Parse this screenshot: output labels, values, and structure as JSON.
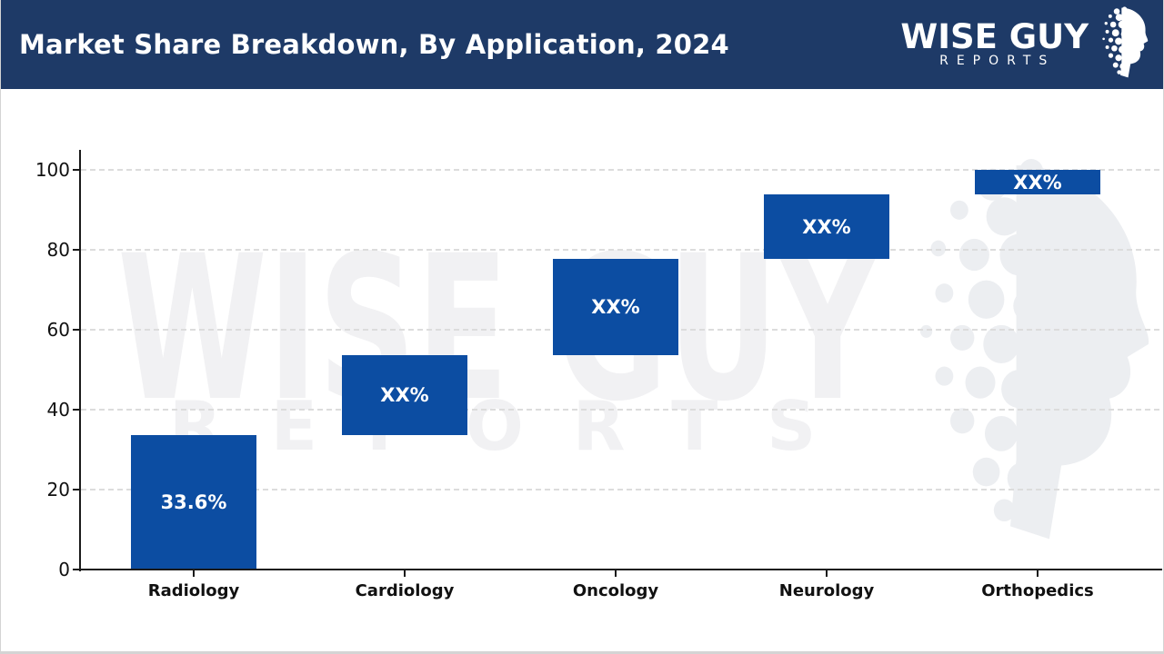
{
  "header": {
    "title": "Market Share Breakdown, By Application, 2024",
    "bg_color": "#1e3a67",
    "logo": {
      "primary": "WISE GUY",
      "secondary": "REPORTS"
    }
  },
  "watermark": {
    "primary": "WISE GUY",
    "secondary": "REPORTS"
  },
  "chart_data": {
    "type": "bar",
    "variant": "waterfall-breakdown",
    "title": "Market Share Breakdown, By Application, 2024",
    "categories": [
      "Radiology",
      "Cardiology",
      "Oncology",
      "Neurology",
      "Orthopedics"
    ],
    "segments": [
      {
        "category": "Radiology",
        "start": 0,
        "end": 33.6,
        "label": "33.6%"
      },
      {
        "category": "Cardiology",
        "start": 33.6,
        "end": 53.6,
        "label": "XX%"
      },
      {
        "category": "Oncology",
        "start": 53.6,
        "end": 77.7,
        "label": "XX%"
      },
      {
        "category": "Neurology",
        "start": 77.7,
        "end": 93.8,
        "label": "XX%"
      },
      {
        "category": "Orthopedics",
        "start": 93.8,
        "end": 100,
        "label": "XX%"
      }
    ],
    "yticks": [
      0,
      20,
      40,
      60,
      80,
      100
    ],
    "ylim": [
      0,
      105
    ],
    "xlabel": "",
    "ylabel": "",
    "bar_color": "#0c4da2",
    "bar_label_color": "#ffffff",
    "grid": "horizontal-dashed",
    "grid_color": "#dcdcdc",
    "legend": "none"
  }
}
